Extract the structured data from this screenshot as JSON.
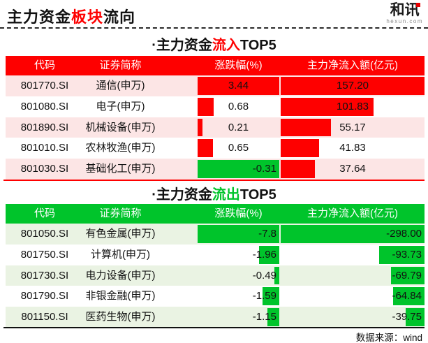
{
  "colors": {
    "red": "#fe0000",
    "green": "#00c42b",
    "pink_row": "#fce5e5",
    "pale_green_row": "#eaf3e3"
  },
  "header": {
    "title_prefix": "主力资金",
    "title_highlight": "板块",
    "title_suffix": "流向",
    "logo_text": "和讯",
    "logo_domain": "hexun.com"
  },
  "inflow": {
    "title_bullet_prefix": "·主力资金",
    "title_highlight": "流入",
    "title_suffix": "TOP5",
    "columns": [
      "代码",
      "证券简称",
      "涨跌幅(%)",
      "主力净流入额(亿元)"
    ],
    "rows": [
      {
        "code": "801770.SI",
        "name": "通信(申万)",
        "pct": "3.44",
        "pct_bar": "100%",
        "pct_color": "#fe0000",
        "pct_align": "center",
        "amt": "157.20",
        "amt_bar": "100%",
        "amt_color": "#fe0000",
        "amt_align": "center"
      },
      {
        "code": "801080.SI",
        "name": "电子(申万)",
        "pct": "0.68",
        "pct_bar": "19.8%",
        "pct_color": "#fe0000",
        "pct_align": "center",
        "amt": "101.83",
        "amt_bar": "64.8%",
        "amt_color": "#fe0000",
        "amt_align": "center"
      },
      {
        "code": "801890.SI",
        "name": "机械设备(申万)",
        "pct": "0.21",
        "pct_bar": "6.1%",
        "pct_color": "#fe0000",
        "pct_align": "center",
        "amt": "55.17",
        "amt_bar": "35.1%",
        "amt_color": "#fe0000",
        "amt_align": "center"
      },
      {
        "code": "801010.SI",
        "name": "农林牧渔(申万)",
        "pct": "0.65",
        "pct_bar": "18.9%",
        "pct_color": "#fe0000",
        "pct_align": "center",
        "amt": "41.83",
        "amt_bar": "26.6%",
        "amt_color": "#fe0000",
        "amt_align": "center"
      },
      {
        "code": "801030.SI",
        "name": "基础化工(申万)",
        "pct": "-0.31",
        "pct_bar": "100%",
        "pct_color": "#00c42b",
        "pct_align": "right",
        "amt": "37.64",
        "amt_bar": "23.9%",
        "amt_color": "#fe0000",
        "amt_align": "center"
      }
    ]
  },
  "outflow": {
    "title_bullet_prefix": "·主力资金",
    "title_highlight": "流出",
    "title_suffix": "TOP5",
    "columns": [
      "代码",
      "证券简称",
      "涨跌幅(%)",
      "主力净流入额(亿元)"
    ],
    "rows": [
      {
        "code": "801050.SI",
        "name": "有色金属(申万)",
        "pct": "-7.8",
        "pct_bar": "100%",
        "pct_color": "#00c42b",
        "pct_align": "right",
        "amt": "-298.00",
        "amt_bar": "100%",
        "amt_color": "#00c42b",
        "amt_align": "right"
      },
      {
        "code": "801750.SI",
        "name": "计算机(申万)",
        "pct": "-1.96",
        "pct_bar": "25.1%",
        "pct_color": "#00c42b",
        "pct_align": "right",
        "amt": "-93.73",
        "amt_bar": "31.5%",
        "amt_color": "#00c42b",
        "amt_align": "right"
      },
      {
        "code": "801730.SI",
        "name": "电力设备(申万)",
        "pct": "-0.49",
        "pct_bar": "6.3%",
        "pct_color": "#00c42b",
        "pct_align": "right",
        "amt": "-69.79",
        "amt_bar": "23.4%",
        "amt_color": "#00c42b",
        "amt_align": "right"
      },
      {
        "code": "801790.SI",
        "name": "非银金融(申万)",
        "pct": "-1.59",
        "pct_bar": "20.4%",
        "pct_color": "#00c42b",
        "pct_align": "right",
        "amt": "-64.84",
        "amt_bar": "21.8%",
        "amt_color": "#00c42b",
        "amt_align": "right"
      },
      {
        "code": "801150.SI",
        "name": "医药生物(申万)",
        "pct": "-1.15",
        "pct_bar": "14.7%",
        "pct_color": "#00c42b",
        "pct_align": "right",
        "amt": "-39.75",
        "amt_bar": "13.3%",
        "amt_color": "#00c42b",
        "amt_align": "right"
      }
    ]
  },
  "footer": {
    "source": "数据来源：wind"
  },
  "chart_data": [
    {
      "type": "table",
      "title": "主力资金流入TOP5",
      "columns": [
        "代码",
        "证券简称",
        "涨跌幅(%)",
        "主力净流入额(亿元)"
      ],
      "rows": [
        [
          "801770.SI",
          "通信(申万)",
          3.44,
          157.2
        ],
        [
          "801080.SI",
          "电子(申万)",
          0.68,
          101.83
        ],
        [
          "801890.SI",
          "机械设备(申万)",
          0.21,
          55.17
        ],
        [
          "801010.SI",
          "农林牧渔(申万)",
          0.65,
          41.83
        ],
        [
          "801030.SI",
          "基础化工(申万)",
          -0.31,
          37.64
        ]
      ],
      "bar_scale_max": {
        "pct": 3.44,
        "amount": 157.2
      },
      "bar_direction": "left-to-right",
      "positive_color": "#fe0000",
      "negative_color": "#00c42b"
    },
    {
      "type": "table",
      "title": "主力资金流出TOP5",
      "columns": [
        "代码",
        "证券简称",
        "涨跌幅(%)",
        "主力净流入额(亿元)"
      ],
      "rows": [
        [
          "801050.SI",
          "有色金属(申万)",
          -7.8,
          -298.0
        ],
        [
          "801750.SI",
          "计算机(申万)",
          -1.96,
          -93.73
        ],
        [
          "801730.SI",
          "电力设备(申万)",
          -0.49,
          -69.79
        ],
        [
          "801790.SI",
          "非银金融(申万)",
          -1.59,
          -64.84
        ],
        [
          "801150.SI",
          "医药生物(申万)",
          -1.15,
          -39.75
        ]
      ],
      "bar_scale_max": {
        "pct": 7.8,
        "amount": 298.0
      },
      "bar_direction": "right-to-left",
      "positive_color": "#fe0000",
      "negative_color": "#00c42b"
    }
  ]
}
